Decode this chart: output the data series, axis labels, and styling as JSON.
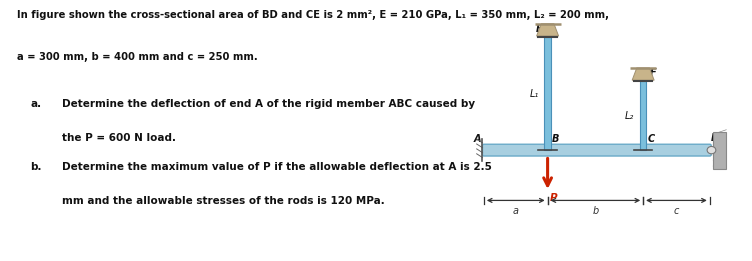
{
  "bg_color": "#ffffff",
  "diagram_bg": "#cde4f0",
  "title_line1": "In figure shown the cross-sectional area of BD and CE is 2 mm², E = 210 GPa, L₁ = 350 mm, L₂ = 200 mm,",
  "title_line2": "a = 300 mm, b = 400 mm and c = 250 mm.",
  "item_a1": "a.   Determine the deflection of end A of the rigid member ABC caused by",
  "item_a2": "      the P = 600 N load.",
  "item_b1": "b.   Determine the maximum value of P if the allowable deflection at A is 2.5",
  "item_b2": "      mm and the allowable stresses of the rods is 120 MPa.",
  "rod_color": "#7bbfdc",
  "rod_edge": "#4a90b8",
  "beam_color": "#a8cfe0",
  "beam_edge": "#6aaac8",
  "support_tan": "#c8b48a",
  "support_edge": "#a09070",
  "wall_color": "#b0b0b0",
  "wall_edge": "#888888",
  "arrow_color": "#cc2200",
  "dim_color": "#333333",
  "label_color": "#111111",
  "text_color": "#111111"
}
